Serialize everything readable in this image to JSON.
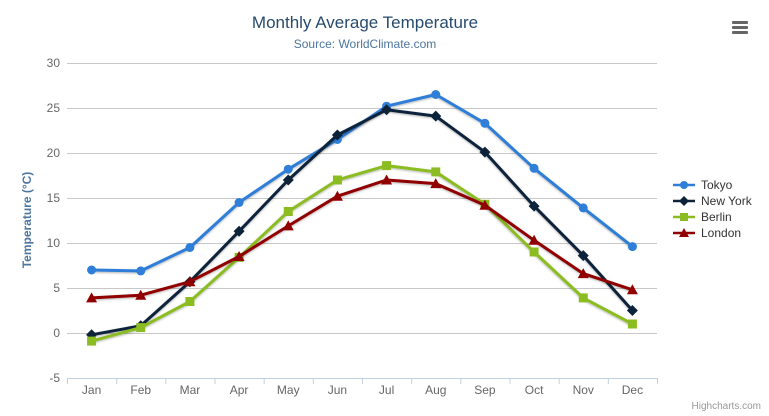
{
  "header": {
    "title": "Monthly Average Temperature",
    "subtitle": "Source: WorldClimate.com"
  },
  "credits": {
    "label": "Highcharts.com"
  },
  "menu": {
    "icon": "hamburger-icon"
  },
  "chart_data": {
    "type": "line",
    "title": "Monthly Average Temperature",
    "subtitle": "Source: WorldClimate.com",
    "xlabel": "",
    "ylabel": "Temperature (°C)",
    "ylim": [
      -5,
      30
    ],
    "ytick_step": 5,
    "yticks": [
      -5,
      0,
      5,
      10,
      15,
      20,
      25,
      30
    ],
    "grid": true,
    "legend_position": "right",
    "categories": [
      "Jan",
      "Feb",
      "Mar",
      "Apr",
      "May",
      "Jun",
      "Jul",
      "Aug",
      "Sep",
      "Oct",
      "Nov",
      "Dec"
    ],
    "series": [
      {
        "name": "Tokyo",
        "color": "#2f7ed8",
        "marker": "circle",
        "values": [
          7.0,
          6.9,
          9.5,
          14.5,
          18.2,
          21.5,
          25.2,
          26.5,
          23.3,
          18.3,
          13.9,
          9.6
        ]
      },
      {
        "name": "New York",
        "color": "#0d233a",
        "marker": "diamond",
        "values": [
          -0.2,
          0.8,
          5.7,
          11.3,
          17.0,
          22.0,
          24.8,
          24.1,
          20.1,
          14.1,
          8.6,
          2.5
        ]
      },
      {
        "name": "Berlin",
        "color": "#8bbc21",
        "marker": "square",
        "values": [
          -0.9,
          0.6,
          3.5,
          8.4,
          13.5,
          17.0,
          18.6,
          17.9,
          14.3,
          9.0,
          3.9,
          1.0
        ]
      },
      {
        "name": "London",
        "color": "#910000",
        "marker": "triangle",
        "values": [
          3.9,
          4.2,
          5.7,
          8.5,
          11.9,
          15.2,
          17.0,
          16.6,
          14.2,
          10.3,
          6.6,
          4.8
        ]
      }
    ],
    "axis_colors": {
      "grid": "#c8c8c8",
      "axis_line": "#c0d0e0",
      "tick": "#c0d0e0",
      "label": "#666666"
    }
  }
}
